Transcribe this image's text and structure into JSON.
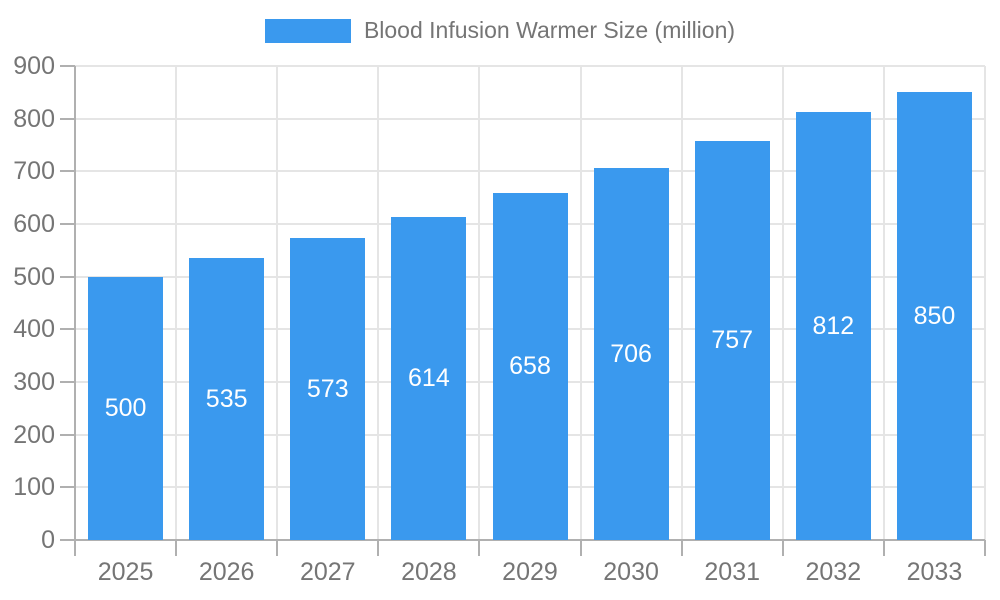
{
  "chart_data": {
    "type": "bar",
    "title": "Blood Infusion Warmer Size (million)",
    "series_name": "Blood Infusion Warmer Size (million)",
    "categories": [
      "2025",
      "2026",
      "2027",
      "2028",
      "2029",
      "2030",
      "2031",
      "2032",
      "2033"
    ],
    "values": [
      500,
      535,
      573,
      614,
      658,
      706,
      757,
      812,
      850
    ],
    "xlabel": "",
    "ylabel": "",
    "ylim": [
      0,
      900
    ],
    "yticks": [
      0,
      100,
      200,
      300,
      400,
      500,
      600,
      700,
      800,
      900
    ],
    "grid": true,
    "legend_position": "top-center",
    "bar_label_position": "inside-middle",
    "colors": {
      "bar": "#3a99ee",
      "axis_line": "#b0b0b0",
      "gridline": "#e5e5e5",
      "text": "#757575",
      "bar_label": "#ffffff",
      "background": "#ffffff"
    }
  }
}
